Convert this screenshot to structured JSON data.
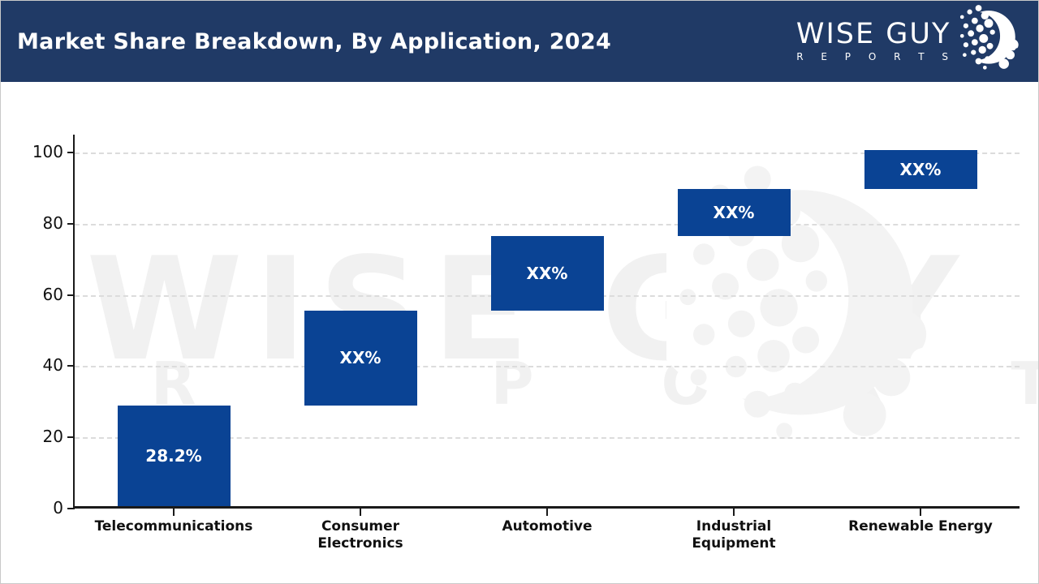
{
  "header": {
    "title": "Market Share Breakdown, By Application, 2024",
    "bg_color": "#203a66",
    "logo": {
      "line1": "WISE GUY",
      "line2": "R E P O R T S"
    }
  },
  "watermark": {
    "wordmark": "WISE GUY",
    "reports": "R E P O R T S",
    "color": "#f1f1f1"
  },
  "chart_data": {
    "type": "bar",
    "subtype": "waterfall",
    "title": "Market Share Breakdown, By Application, 2024",
    "categories": [
      "Telecommunications",
      "Consumer Electronics",
      "Automotive",
      "Industrial Equipment",
      "Renewable Energy"
    ],
    "category_lines": [
      [
        "Telecommunications"
      ],
      [
        "Consumer",
        "Electronics"
      ],
      [
        "Automotive"
      ],
      [
        "Industrial",
        "Equipment"
      ],
      [
        "Renewable Energy"
      ]
    ],
    "segments": [
      {
        "category": "Telecommunications",
        "start": 0,
        "end": 28.2,
        "value": 28.2,
        "label": "28.2%"
      },
      {
        "category": "Consumer Electronics",
        "start": 28.2,
        "end": 55,
        "value": 26.8,
        "label": "XX%"
      },
      {
        "category": "Automotive",
        "start": 55,
        "end": 76,
        "value": 21.0,
        "label": "XX%"
      },
      {
        "category": "Industrial Equipment",
        "start": 76,
        "end": 89.2,
        "value": 13.2,
        "label": "XX%"
      },
      {
        "category": "Renewable Energy",
        "start": 89.2,
        "end": 100,
        "value": 10.8,
        "label": "XX%"
      }
    ],
    "xlabel": "",
    "ylabel": "",
    "ylim": [
      0,
      100
    ],
    "yticks": [
      0,
      20,
      40,
      60,
      80,
      100
    ],
    "grid": "horizontal-dashed",
    "grid_color": "#dcdcdc",
    "axis_color": "#1a1a1a",
    "bar_color": "#0a4394",
    "bar_label_color": "#ffffff",
    "legend": "none"
  }
}
